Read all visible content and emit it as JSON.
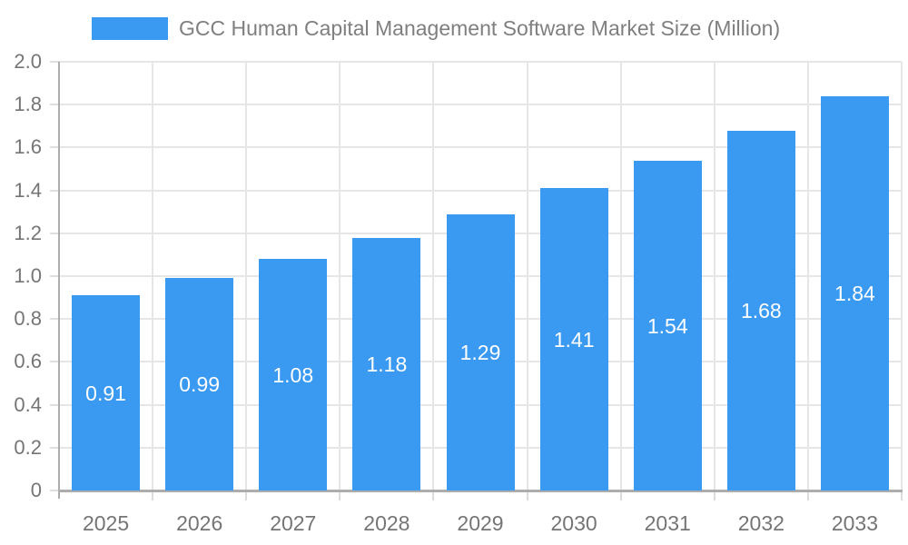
{
  "chart_data": {
    "type": "bar",
    "title": "GCC Human Capital Management Software Market Size (Million)",
    "categories": [
      "2025",
      "2026",
      "2027",
      "2028",
      "2029",
      "2030",
      "2031",
      "2032",
      "2033"
    ],
    "values": [
      0.91,
      0.99,
      1.08,
      1.18,
      1.29,
      1.41,
      1.54,
      1.68,
      1.84
    ],
    "labels": [
      "0.91",
      "0.99",
      "1.08",
      "1.18",
      "1.29",
      "1.41",
      "1.54",
      "1.68",
      "1.84"
    ],
    "ytick_labels": [
      "0",
      "0.2",
      "0.4",
      "0.6",
      "0.8",
      "1.0",
      "1.2",
      "1.4",
      "1.6",
      "1.8",
      "2.0"
    ],
    "yticks": [
      0,
      0.2,
      0.4,
      0.6,
      0.8,
      1.0,
      1.2,
      1.4,
      1.6,
      1.8,
      2.0
    ],
    "ylim": [
      0,
      2.0
    ],
    "xlabel": "",
    "ylabel": "",
    "grid": true,
    "legend_position": "top"
  },
  "colors": {
    "bar": "#3A99F0",
    "bar_label": "#FFFFFF",
    "legend_text": "#7F7F7F",
    "axis_label": "#757575",
    "gridline": "#E6E6E6",
    "axis_line": "#ADADAD",
    "background": "#FFFFFF"
  }
}
